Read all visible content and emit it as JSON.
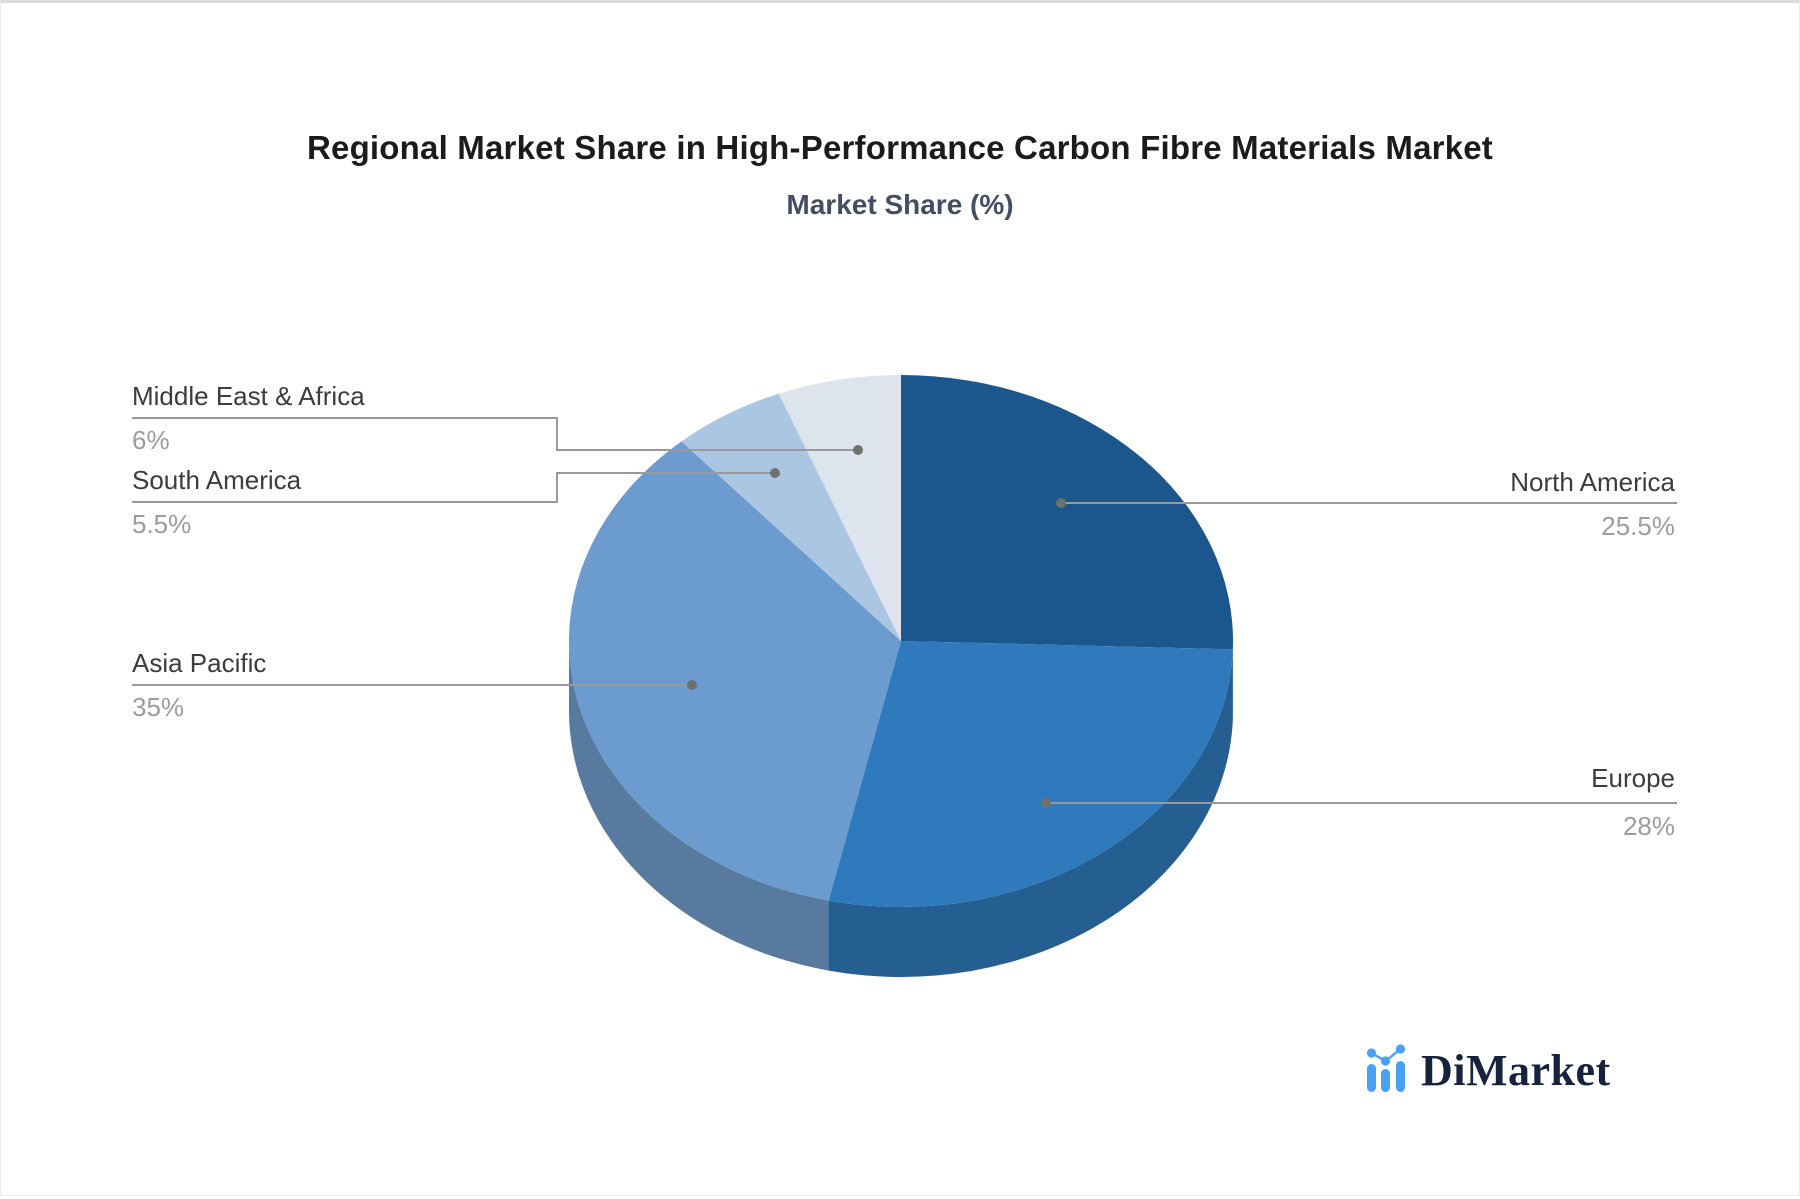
{
  "header": {
    "title": "Regional Market Share in High-Performance Carbon Fibre Materials Market",
    "subtitle": "Market Share (%)"
  },
  "brand": {
    "name": "DiMarket",
    "icon": "bar-chart-logo-icon",
    "icon_color": "#4aa0f2",
    "text_color": "#16233c"
  },
  "chart_data": {
    "type": "pie",
    "title": "Regional Market Share in High-Performance Carbon Fibre Materials Market",
    "subtitle": "Market Share (%)",
    "unit": "%",
    "effect": "3d-depth",
    "start_angle_deg": 0,
    "direction": "clockwise",
    "slices": [
      {
        "label": "North America",
        "value": 25.5,
        "display_value": "25.5%",
        "color": "#1b578d",
        "side_color": "#15466f",
        "label_side": "right"
      },
      {
        "label": "Europe",
        "value": 28,
        "display_value": "28%",
        "color": "#2e7abd",
        "side_color": "#255f92",
        "label_side": "right"
      },
      {
        "label": "Asia Pacific",
        "value": 35,
        "display_value": "35%",
        "color": "#6c9bcf",
        "side_color": "#587a9f",
        "label_side": "left"
      },
      {
        "label": "South America",
        "value": 5.5,
        "display_value": "5.5%",
        "color": "#abc6e2",
        "side_color": "#8ba6c2",
        "label_side": "left"
      },
      {
        "label": "Middle East & Africa",
        "value": 6,
        "display_value": "6%",
        "color": "#dde4ee",
        "side_color": "#b4bfce",
        "label_side": "left"
      }
    ],
    "colors": {
      "leader_line": "#999999",
      "leader_dot": "#707070",
      "label_text": "#3c3c3c",
      "value_text": "#9c9c9c"
    }
  }
}
